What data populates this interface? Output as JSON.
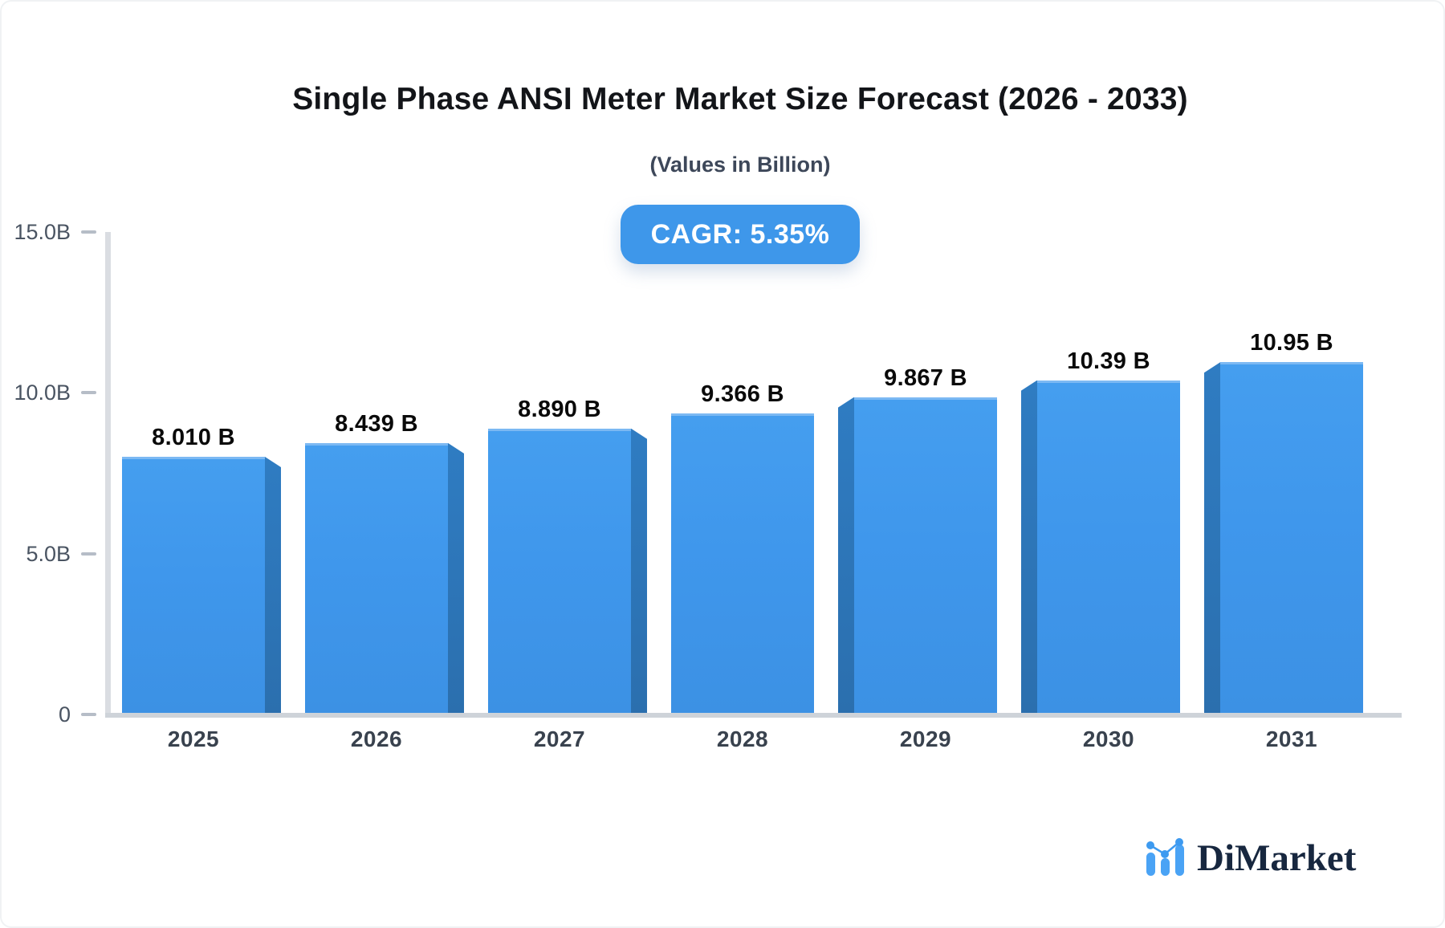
{
  "header": {
    "title": "Single Phase ANSI Meter Market Size Forecast (2026 - 2033)",
    "subtitle": "(Values in Billion)",
    "cagr_badge": "CAGR: 5.35%"
  },
  "chart_data": {
    "type": "bar",
    "title": "Single Phase ANSI Meter Market Size Forecast (2026 - 2033)",
    "subtitle": "(Values in Billion)",
    "annotation": "CAGR: 5.35%",
    "categories": [
      "2025",
      "2026",
      "2027",
      "2028",
      "2029",
      "2030",
      "2031"
    ],
    "values": [
      8.01,
      8.439,
      8.89,
      9.366,
      9.867,
      10.39,
      10.95
    ],
    "value_labels": [
      "8.010 B",
      "8.439 B",
      "8.890 B",
      "9.366 B",
      "9.867 B",
      "10.39 B",
      "10.95 B"
    ],
    "ylim": [
      0,
      15
    ],
    "yticks": [
      {
        "value": 0,
        "label": "0"
      },
      {
        "value": 5,
        "label": "5.0B"
      },
      {
        "value": 10,
        "label": "10.0B"
      },
      {
        "value": 15,
        "label": "15.0B"
      }
    ],
    "grid": false,
    "legend": false,
    "unit": "Billion",
    "colors": {
      "bar_face": "#3f97ec",
      "bar_side": "#2d76ba",
      "bar_top_highlight": "#7cb9f3",
      "badge": "#3e97ea",
      "axis_line": "#ced3d9",
      "tick_label": "#4a5462"
    }
  },
  "footer": {
    "brand": "DiMarket"
  }
}
